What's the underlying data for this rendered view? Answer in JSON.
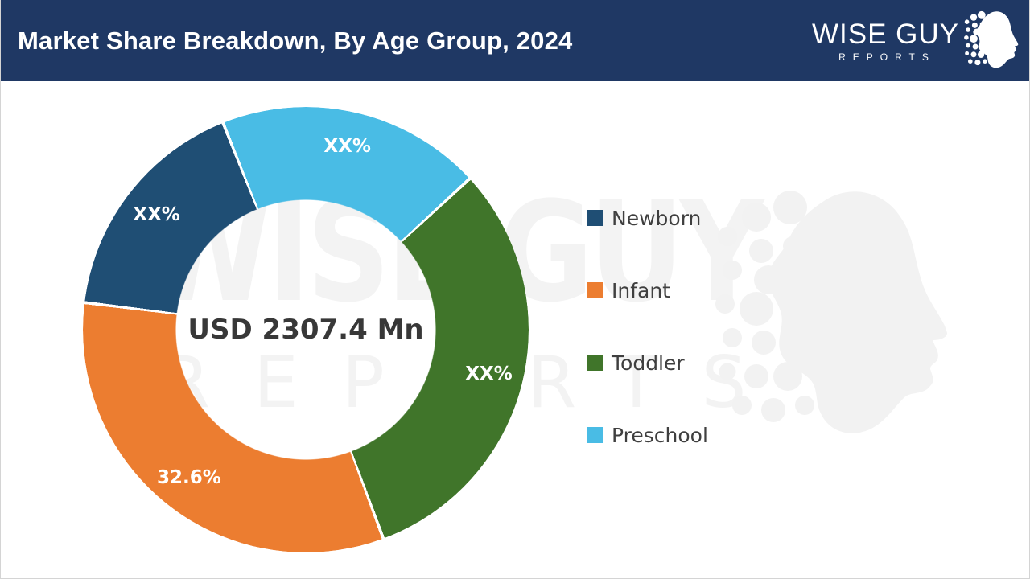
{
  "header": {
    "title": "Market Share Breakdown, By Age Group, 2024",
    "logo": {
      "name": "WISE GUY",
      "sub": "REPORTS"
    }
  },
  "watermark": {
    "big": "WISE GUY",
    "sub": "REPORTS"
  },
  "chart_data": {
    "type": "pie",
    "subtype": "donut",
    "title": "Market Share Breakdown, By Age Group, 2024",
    "center_label": "USD 2307.4 Mn",
    "units": "percent of market share",
    "rotation_start_deg_from_top": -21.8,
    "segments_clockwise": [
      {
        "name": "Preschool",
        "display_label": "XX%",
        "percent_est": 19.2,
        "color": "#49BCE5"
      },
      {
        "name": "Toddler",
        "display_label": "XX%",
        "percent_est": 31.2,
        "color": "#40752A"
      },
      {
        "name": "Infant",
        "display_label": "32.6%",
        "percent_est": 32.6,
        "color": "#EC7D30"
      },
      {
        "name": "Newborn",
        "display_label": "XX%",
        "percent_est": 17.0,
        "color": "#1F4E74"
      }
    ],
    "legend_order": [
      "Newborn",
      "Infant",
      "Toddler",
      "Preschool"
    ],
    "legend_position": "right",
    "label_note": "only Infant shows numeric value; others masked as XX%"
  },
  "colors": {
    "header_bg": "#1F3864",
    "text_dark": "#383838",
    "legend_text": "#3F3F3F",
    "watermark": "#F3F3F3",
    "frame_border": "#D4D4D4"
  }
}
